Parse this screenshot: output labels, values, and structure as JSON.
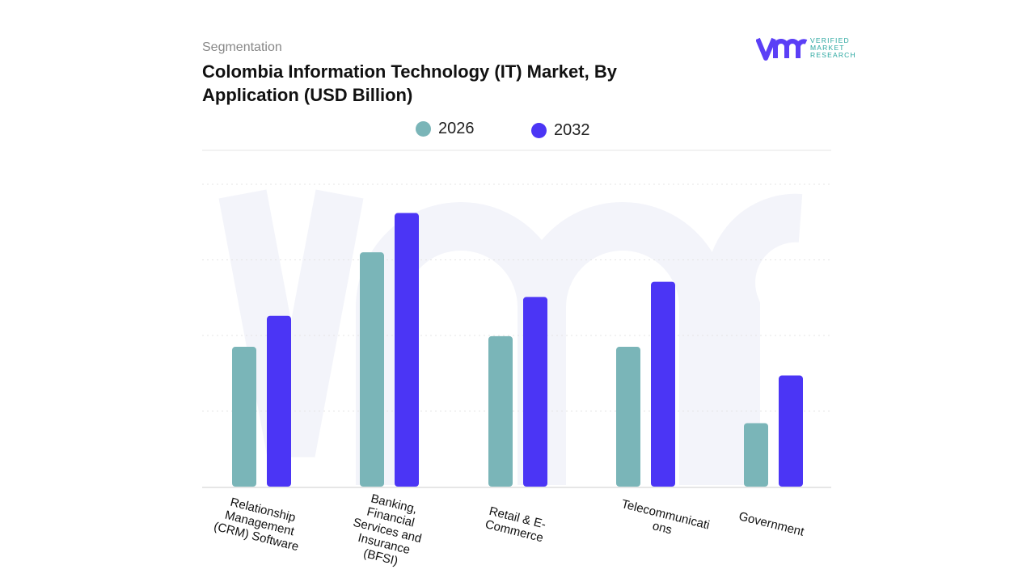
{
  "header": {
    "segment_label": "Segmentation",
    "title": "Colombia Information Technology (IT) Market, By Application (USD Billion)"
  },
  "logo": {
    "text_lines": [
      "VERIFIED",
      "MARKET",
      "RESEARCH"
    ],
    "color": "#5b3ff6",
    "text_color": "#2aa7a0"
  },
  "chart_data": {
    "type": "bar",
    "title": "Colombia Information Technology (IT) Market, By Application (USD Billion)",
    "categories": [
      "Relationship Management (CRM) Software",
      "Banking, Financial Services and Insurance (BFSI)",
      "Retail & E-Commerce",
      "Telecommunications",
      "Government"
    ],
    "category_labels": [
      "Relationship\nManagement\n(CRM) Software",
      "Banking,\nFinancial\nServices and\nInsurance\n(BFSI)",
      "Retail & E-\nCommerce",
      "Telecommunicati\nons",
      "Government"
    ],
    "series": [
      {
        "name": "2026",
        "color": "#7ab5b8",
        "values": [
          1.85,
          3.1,
          1.99,
          1.85,
          0.84
        ]
      },
      {
        "name": "2032",
        "color": "#4b35f5",
        "values": [
          2.26,
          3.62,
          2.51,
          2.71,
          1.47
        ]
      }
    ],
    "ylim": [
      0,
      4
    ],
    "y_axis_labels_shown": false,
    "grid": true,
    "legend_position": "top-center",
    "xlabel": "",
    "ylabel": ""
  }
}
